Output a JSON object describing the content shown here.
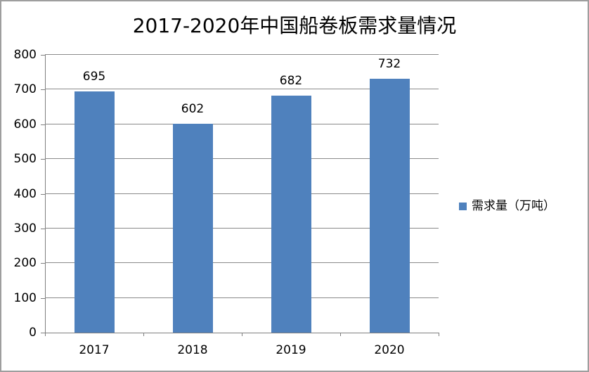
{
  "chart_data": {
    "type": "bar",
    "title": "2017-2020年中国船卷板需求量情况",
    "categories": [
      "2017",
      "2018",
      "2019",
      "2020"
    ],
    "series": [
      {
        "name": "需求量（万吨）",
        "color": "#4F81BD",
        "values": [
          695,
          602,
          682,
          732
        ]
      }
    ],
    "xlabel": "",
    "ylabel": "",
    "ylim": [
      0,
      800
    ],
    "ytick_step": 100,
    "yticks": [
      0,
      100,
      200,
      300,
      400,
      500,
      600,
      700,
      800
    ],
    "grid": true,
    "data_labels": true,
    "legend_position": "right",
    "colors": {
      "bar": "#4F81BD",
      "gridline": "#8A8A8A",
      "axis": "#7F7F7F",
      "text": "#000000",
      "frame_border": "#9E9E9E",
      "background": "#FFFFFF"
    }
  }
}
